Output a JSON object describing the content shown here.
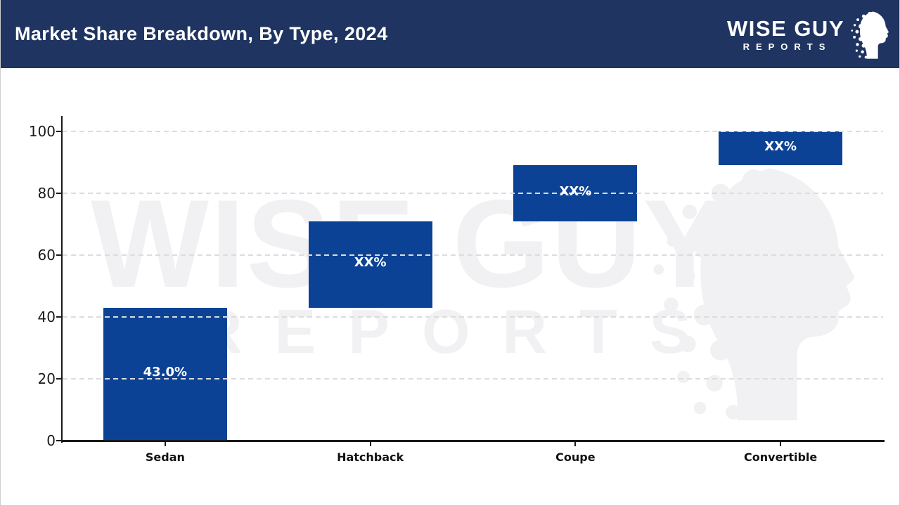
{
  "header": {
    "title": "Market Share Breakdown, By Type, 2024",
    "logo": {
      "line1": "WISE GUY",
      "line2": "REPORTS"
    }
  },
  "watermark": {
    "line1": "WISE GUY",
    "line2": "REPORTS"
  },
  "colors": {
    "header_bg": "#1f3460",
    "bar": "#0b4295",
    "bar_label": "#ffffff",
    "grid": "#dcdcdc",
    "axis": "#1a1a1a",
    "watermark": "#f1f1f3"
  },
  "chart_data": {
    "type": "bar",
    "subtype": "waterfall",
    "title": "Market Share Breakdown, By Type, 2024",
    "xlabel": "",
    "ylabel": "",
    "categories": [
      "Sedan",
      "Hatchback",
      "Coupe",
      "Convertible"
    ],
    "segments": [
      {
        "category": "Sedan",
        "start": 0,
        "end": 43,
        "value": 43,
        "label": "43.0%"
      },
      {
        "category": "Hatchback",
        "start": 43,
        "end": 71,
        "value": 28,
        "label": "XX%"
      },
      {
        "category": "Coupe",
        "start": 71,
        "end": 89,
        "value": 18,
        "label": "XX%"
      },
      {
        "category": "Convertible",
        "start": 89,
        "end": 100,
        "value": 11,
        "label": "XX%"
      }
    ],
    "ylim": [
      0,
      100
    ],
    "yticks": [
      0,
      20,
      40,
      60,
      80,
      100
    ],
    "grid": "horizontal-dashed",
    "legend": "none"
  }
}
